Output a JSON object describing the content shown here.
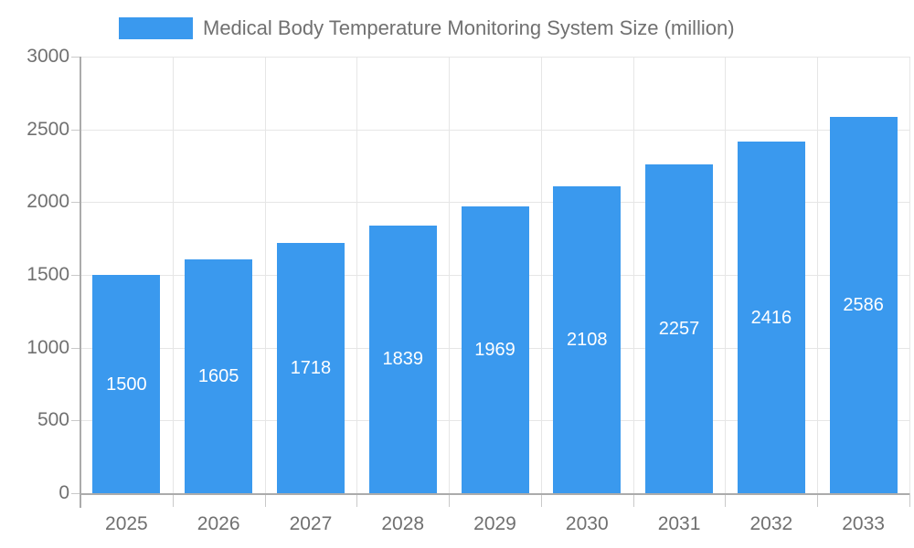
{
  "chart_data": {
    "type": "bar",
    "title": "Medical Body Temperature Monitoring System Size (million)",
    "categories": [
      "2025",
      "2026",
      "2027",
      "2028",
      "2029",
      "2030",
      "2031",
      "2032",
      "2033"
    ],
    "values": [
      1500,
      1605,
      1718,
      1839,
      1969,
      2108,
      2257,
      2416,
      2586
    ],
    "xlabel": "",
    "ylabel": "",
    "ylim": [
      0,
      3000
    ],
    "yticks": [
      0,
      500,
      1000,
      1500,
      2000,
      2500,
      3000
    ],
    "grid": true,
    "legend_position": "top",
    "value_label_position": "inside-center"
  },
  "colors": {
    "bar": "#3A99EE",
    "grid": "#e6e6e6",
    "axis": "#ababab",
    "tick": "#c9c9c9",
    "text": "#707070",
    "value_label": "#ffffff",
    "background": "#ffffff"
  }
}
